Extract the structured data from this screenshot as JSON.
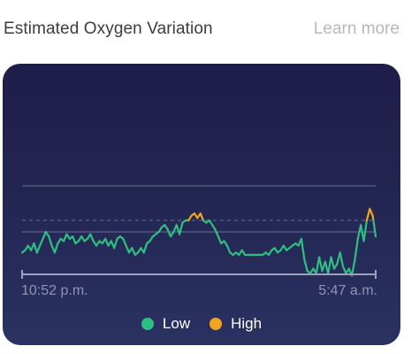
{
  "header": {
    "title": "Estimated Oxygen Variation",
    "learn_more": "Learn more"
  },
  "colors": {
    "low": "#2fbf82",
    "high": "#f2a51e",
    "card_top": "#1f1d4a",
    "card_bottom": "#2a3262"
  },
  "chart_data": {
    "type": "line",
    "x_start_label": "10:52 p.m.",
    "x_end_label": "5:47 a.m.",
    "threshold_high": 0.5,
    "legend": [
      {
        "name": "Low",
        "color": "#2fbf82"
      },
      {
        "name": "High",
        "color": "#f2a51e"
      }
    ],
    "series": [
      {
        "name": "variation",
        "values": [
          -0.9,
          -0.8,
          -0.6,
          -0.8,
          -0.5,
          -0.9,
          -0.6,
          -0.3,
          0.0,
          -0.2,
          -0.6,
          -0.9,
          -0.5,
          -0.3,
          -0.4,
          -0.1,
          -0.3,
          -0.2,
          -0.5,
          -0.4,
          -0.2,
          -0.4,
          -0.3,
          -0.1,
          -0.4,
          -0.6,
          -0.4,
          -0.5,
          -0.3,
          -0.6,
          -0.4,
          -0.7,
          -0.3,
          -0.2,
          -0.3,
          -0.6,
          -0.9,
          -0.7,
          -1.0,
          -0.9,
          -0.7,
          -0.9,
          -0.5,
          -0.4,
          -0.2,
          -0.1,
          0.0,
          0.2,
          0.3,
          0.1,
          -0.2,
          0.0,
          0.3,
          -0.1,
          0.4,
          0.5,
          0.5,
          0.7,
          0.8,
          0.6,
          0.8,
          0.5,
          0.4,
          0.5,
          0.3,
          0.1,
          -0.2,
          -0.5,
          -0.4,
          -0.6,
          -0.9,
          -1.0,
          -0.9,
          -1.0,
          -0.8,
          -1.0,
          -1.0,
          -1.0,
          -1.0,
          -1.0,
          -1.0,
          -1.0,
          -0.9,
          -1.0,
          -0.8,
          -0.7,
          -0.9,
          -0.8,
          -0.6,
          -0.8,
          -0.7,
          -0.6,
          -0.5,
          -0.6,
          -0.3,
          -1.2,
          -1.7,
          -1.8,
          -1.6,
          -1.8,
          -1.1,
          -1.7,
          -1.3,
          -1.8,
          -1.1,
          -1.6,
          -1.4,
          -0.9,
          -1.5,
          -1.8,
          -1.6,
          -1.9,
          -1.2,
          -0.3,
          0.3,
          -0.4,
          0.5,
          1.0,
          0.7,
          -0.2
        ]
      }
    ]
  }
}
